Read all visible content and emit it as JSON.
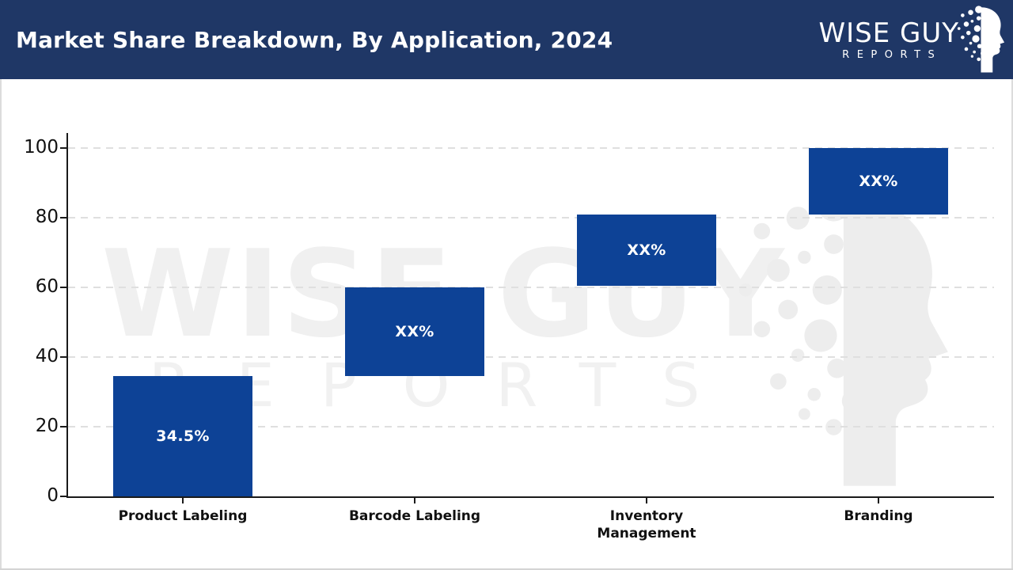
{
  "header": {
    "title": "Market Share Breakdown, By Application, 2024",
    "logo": {
      "name": "wise-guy-reports-logo",
      "line1": "WISE GUY",
      "line2": "REPORTS"
    }
  },
  "watermark": {
    "line1": "WISE GUY",
    "line2": "REPORTS"
  },
  "chart_data": {
    "type": "bar",
    "subtype": "waterfall",
    "title": "Market Share Breakdown, By Application, 2024",
    "xlabel": "",
    "ylabel": "",
    "ylim": [
      0,
      100
    ],
    "yticks": [
      0,
      20,
      40,
      60,
      80,
      100
    ],
    "grid": "dashed-horizontal",
    "legend": "none",
    "categories": [
      "Product Labeling",
      "Barcode Labeling",
      "Inventory Management",
      "Branding"
    ],
    "segments": [
      {
        "category": "Product Labeling",
        "start": 0,
        "end": 34.5,
        "value_label": "34.5%"
      },
      {
        "category": "Barcode Labeling",
        "start": 34.5,
        "end": 60,
        "value_label": "XX%"
      },
      {
        "category": "Inventory Management",
        "start": 60.5,
        "end": 81,
        "value_label": "XX%"
      },
      {
        "category": "Branding",
        "start": 81,
        "end": 100,
        "value_label": "XX%"
      }
    ]
  },
  "colors": {
    "header_background": "#1f3766",
    "bar_fill": "#0d4296",
    "bar_label_text": "#ffffff",
    "grid_line": "#dfdfdf",
    "axis_line": "#1a1a1a",
    "tick_text": "#111111",
    "watermark": "#f0f0f0",
    "frame_border": "#d9d9d9"
  }
}
